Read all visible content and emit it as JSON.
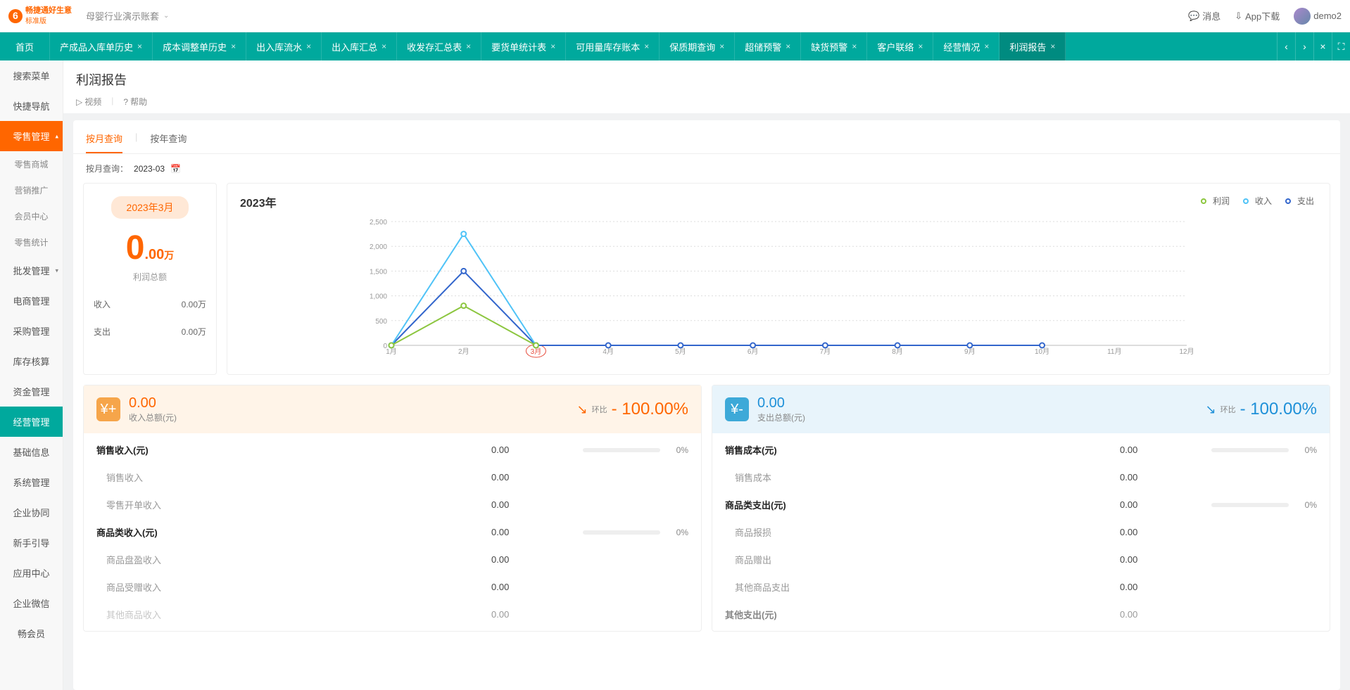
{
  "header": {
    "logo_text": "畅捷通好生意",
    "logo_sub": "标准版",
    "account": "母婴行业演示账套",
    "msg": "消息",
    "app_dl": "App下载",
    "user": "demo2"
  },
  "tabs": {
    "home": "首页",
    "items": [
      "产成品入库单历史",
      "成本调整单历史",
      "出入库流水",
      "出入库汇总",
      "收发存汇总表",
      "要货单统计表",
      "可用量库存账本",
      "保质期查询",
      "超储预警",
      "缺货预警",
      "客户联络",
      "经营情况",
      "利润报告"
    ],
    "active_index": 12
  },
  "sidebar": {
    "items": [
      {
        "label": "搜索菜单",
        "type": "top"
      },
      {
        "label": "快捷导航",
        "type": "top"
      },
      {
        "label": "零售管理",
        "type": "active"
      },
      {
        "label": "零售商城",
        "type": "sub"
      },
      {
        "label": "营销推广",
        "type": "sub"
      },
      {
        "label": "会员中心",
        "type": "sub"
      },
      {
        "label": "零售统计",
        "type": "sub"
      },
      {
        "label": "批发管理",
        "type": "expand"
      },
      {
        "label": "电商管理",
        "type": "top"
      },
      {
        "label": "采购管理",
        "type": "top"
      },
      {
        "label": "库存核算",
        "type": "top"
      },
      {
        "label": "资金管理",
        "type": "top"
      },
      {
        "label": "经营管理",
        "type": "current"
      },
      {
        "label": "基础信息",
        "type": "top"
      },
      {
        "label": "系统管理",
        "type": "top"
      },
      {
        "label": "企业协同",
        "type": "top"
      },
      {
        "label": "新手引导",
        "type": "top"
      },
      {
        "label": "应用中心",
        "type": "top"
      },
      {
        "label": "企业微信",
        "type": "top"
      },
      {
        "label": "畅会员",
        "type": "top"
      }
    ]
  },
  "page": {
    "title": "利润报告",
    "help_video": "视频",
    "help_doc": "帮助",
    "subtabs": {
      "month": "按月查询",
      "year": "按年查询"
    },
    "filter_label": "按月查询：",
    "filter_date": "2023-03"
  },
  "summary_card": {
    "period": "2023年3月",
    "profit_int": "0",
    "profit_dec": ".00",
    "profit_unit": "万",
    "profit_label": "利润总额",
    "income_label": "收入",
    "income_val": "0.00万",
    "expense_label": "支出",
    "expense_val": "0.00万"
  },
  "chart": {
    "title": "2023年",
    "legend": {
      "profit": "利润",
      "income": "收入",
      "expense": "支出"
    },
    "colors": {
      "profit": "#8cc63f",
      "income": "#4fc3f7",
      "expense": "#3366cc",
      "grid": "#dddddd",
      "axis": "#bbbbbb",
      "highlight": "#e74c3c"
    },
    "x_labels": [
      "1月",
      "2月",
      "3月",
      "4月",
      "5月",
      "6月",
      "7月",
      "8月",
      "9月",
      "10月",
      "11月",
      "12月"
    ],
    "y_ticks": [
      0,
      500,
      1000,
      1500,
      2000,
      2500
    ],
    "series": {
      "profit": [
        0,
        800,
        0,
        0,
        0,
        0,
        0,
        0,
        0,
        0,
        0,
        0
      ],
      "income": [
        0,
        2250,
        0,
        0,
        0,
        0,
        0,
        0,
        0,
        0,
        0,
        0
      ],
      "expense": [
        0,
        1500,
        0,
        0,
        0,
        0,
        0,
        0,
        0,
        0,
        0,
        0
      ]
    },
    "highlight_month_index": 2,
    "blue_line_end_index": 9
  },
  "income_card": {
    "total_val": "0.00",
    "total_label": "收入总额(元)",
    "trend_label": "环比",
    "trend_pct": "- 100.00%",
    "rows": [
      {
        "label": "销售收入(元)",
        "val": "0.00",
        "pct": "0%",
        "bold": true,
        "bar": true
      },
      {
        "label": "销售收入",
        "val": "0.00",
        "sub": true
      },
      {
        "label": "零售开单收入",
        "val": "0.00",
        "sub": true
      },
      {
        "label": "商品类收入(元)",
        "val": "0.00",
        "pct": "0%",
        "bold": true,
        "bar": true
      },
      {
        "label": "商品盘盈收入",
        "val": "0.00",
        "sub": true
      },
      {
        "label": "商品受赠收入",
        "val": "0.00",
        "sub": true
      },
      {
        "label": "其他商品收入",
        "val": "0.00",
        "sub": true,
        "cut": true
      }
    ]
  },
  "expense_card": {
    "total_val": "0.00",
    "total_label": "支出总额(元)",
    "trend_label": "环比",
    "trend_pct": "- 100.00%",
    "rows": [
      {
        "label": "销售成本(元)",
        "val": "0.00",
        "pct": "0%",
        "bold": true,
        "bar": true
      },
      {
        "label": "销售成本",
        "val": "0.00",
        "sub": true
      },
      {
        "label": "商品类支出(元)",
        "val": "0.00",
        "pct": "0%",
        "bold": true,
        "bar": true
      },
      {
        "label": "商品报损",
        "val": "0.00",
        "sub": true
      },
      {
        "label": "商品赠出",
        "val": "0.00",
        "sub": true
      },
      {
        "label": "其他商品支出",
        "val": "0.00",
        "sub": true
      },
      {
        "label": "其他支出(元)",
        "val": "0.00",
        "bold": true,
        "cut": true
      }
    ]
  }
}
